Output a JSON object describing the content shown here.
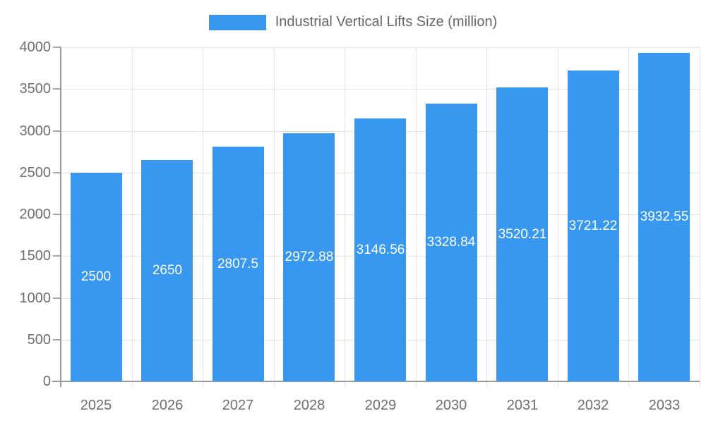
{
  "legend": {
    "label": "Industrial Vertical Lifts Size (million)"
  },
  "chart_data": {
    "type": "bar",
    "title": "",
    "xlabel": "",
    "ylabel": "",
    "categories": [
      "2025",
      "2026",
      "2027",
      "2028",
      "2029",
      "2030",
      "2031",
      "2032",
      "2033"
    ],
    "series": [
      {
        "name": "Industrial Vertical Lifts Size (million)",
        "values": [
          2500,
          2650,
          2807.5,
          2972.88,
          3146.56,
          3328.84,
          3520.21,
          3721.22,
          3932.55
        ],
        "value_labels": [
          "2500",
          "2650",
          "2807.5",
          "2972.88",
          "3146.56",
          "3328.84",
          "3520.21",
          "3721.22",
          "3932.55"
        ]
      }
    ],
    "ylim": [
      0,
      4000
    ],
    "ytick_step": 500,
    "yticks": [
      0,
      500,
      1000,
      1500,
      2000,
      2500,
      3000,
      3500,
      4000
    ],
    "ytick_labels": [
      "0",
      "500",
      "1000",
      "1500",
      "2000",
      "2500",
      "3000",
      "3500",
      "4000"
    ],
    "grid": true,
    "legend_position": "top",
    "data_label_position": "center-inside",
    "colors": {
      "bar": "#3898F0",
      "grid": "#e3e3e3",
      "axis": "#999999",
      "tick_mark": "#a6a6a6",
      "tick_label_text": "#6e6e6e",
      "bar_label_text": "#ffffff",
      "legend_text": "#666666"
    }
  }
}
